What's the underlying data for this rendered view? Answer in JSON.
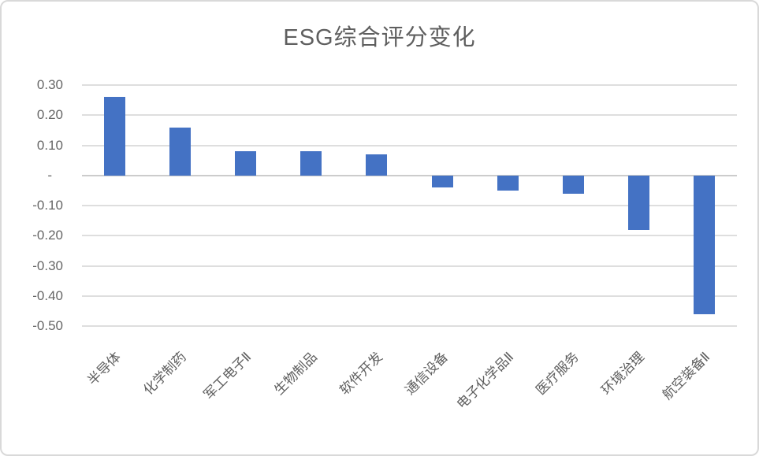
{
  "window": {
    "background": "#ffffff",
    "border_color": "#d9d9d9"
  },
  "chart_data": {
    "type": "bar",
    "title": "ESG综合评分变化",
    "categories": [
      "半导体",
      "化学制药",
      "军工电子Ⅱ",
      "生物制品",
      "软件开发",
      "通信设备",
      "电子化学品Ⅱ",
      "医疗服务",
      "环境治理",
      "航空装备Ⅱ"
    ],
    "values": [
      0.26,
      0.16,
      0.08,
      0.08,
      0.07,
      -0.04,
      -0.05,
      -0.06,
      -0.18,
      -0.46
    ],
    "xlabel": "",
    "ylabel": "",
    "ylim": [
      -0.5,
      0.3
    ],
    "ytick_step": 0.1,
    "ytick_labels": [
      "0.30",
      "0.20",
      "0.10",
      "-",
      "-0.10",
      "-0.20",
      "-0.30",
      "-0.40",
      "-0.50"
    ],
    "grid": true,
    "legend": false,
    "bar_color": "#4472C4",
    "gridline_color": "#dedede",
    "zero_line_color": "#cccccc",
    "tick_text_color": "#666666",
    "category_text_color": "#5f5f5f",
    "title_color": "#5f5f5f",
    "x_label_rotation_deg": -45
  }
}
